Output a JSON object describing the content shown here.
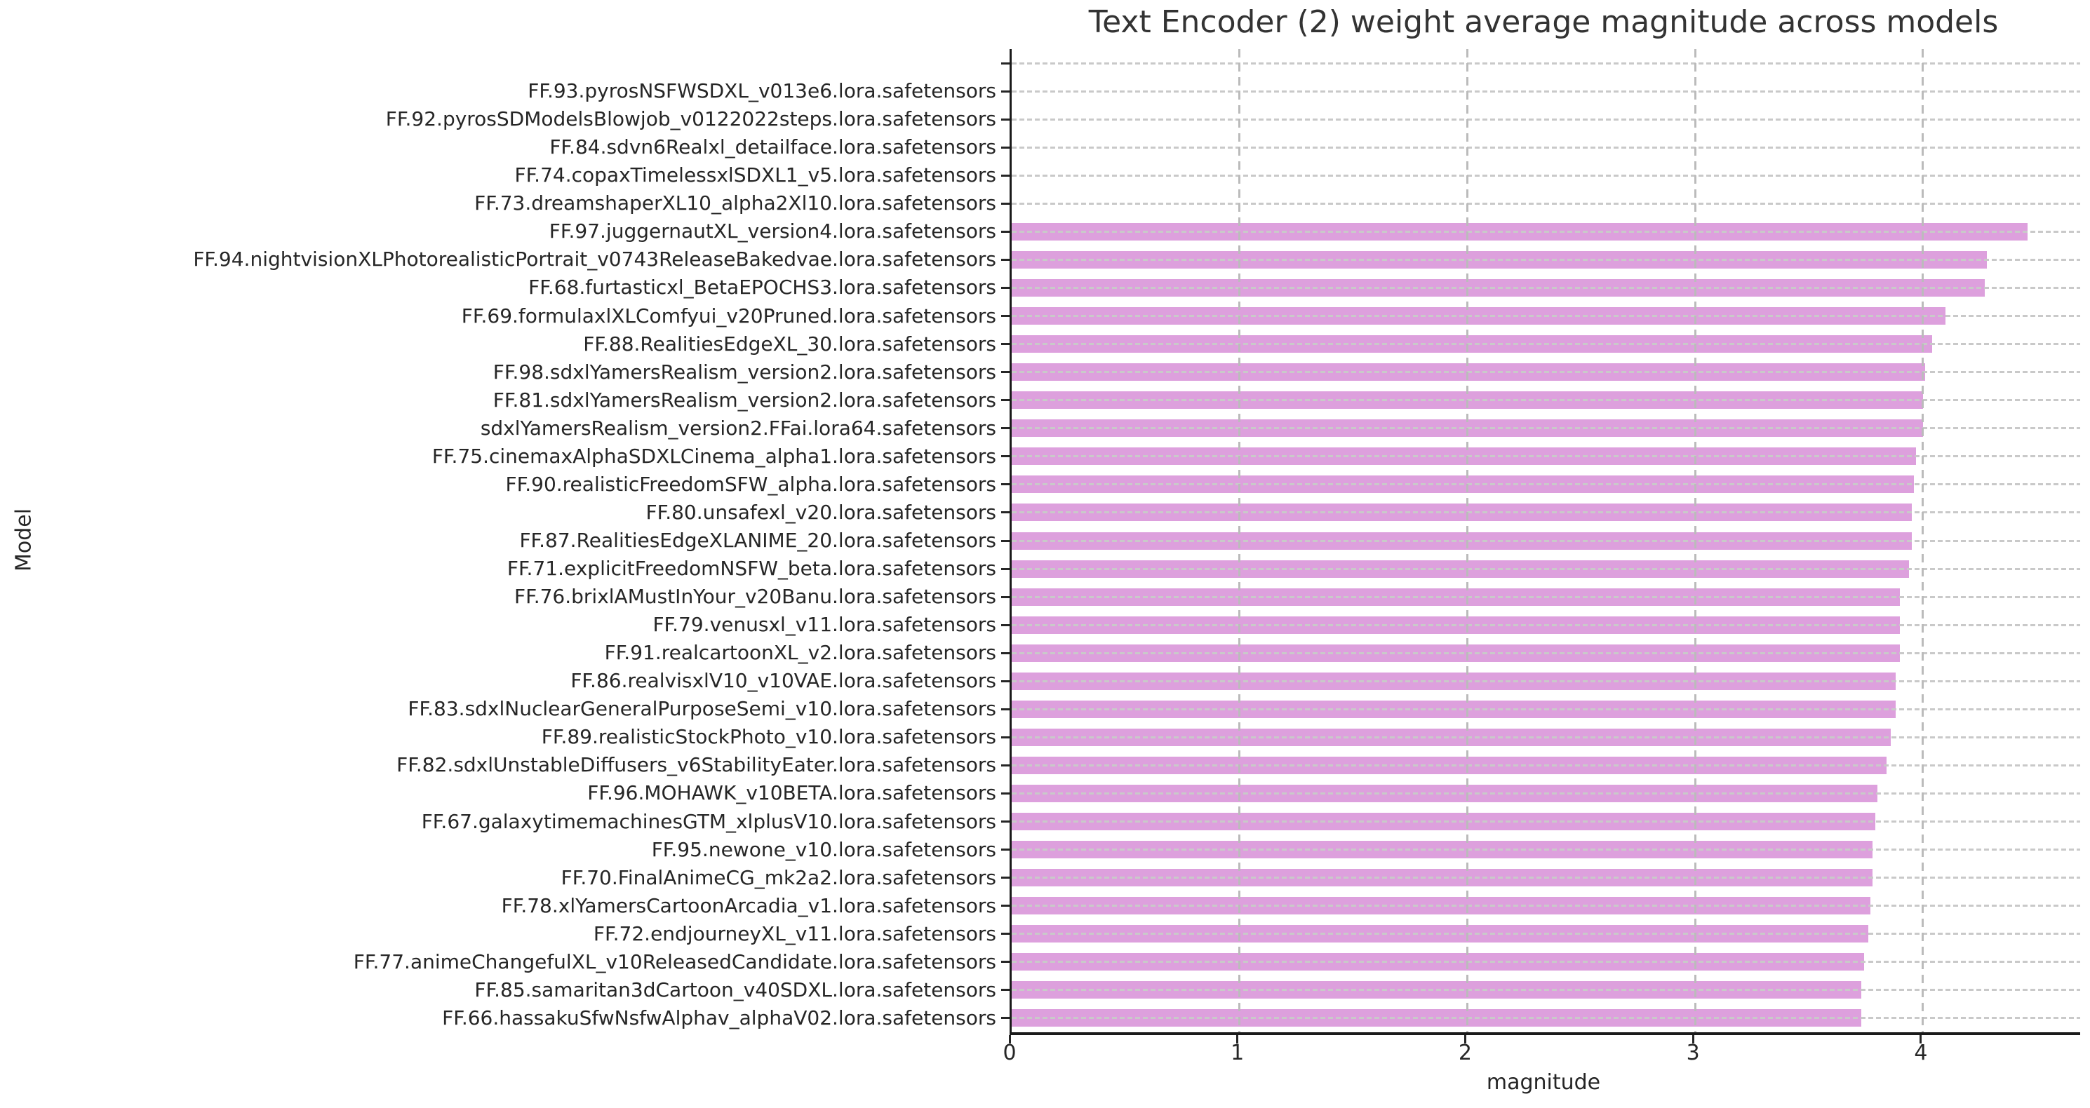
{
  "chart_data": {
    "type": "bar",
    "orientation": "horizontal",
    "title": "Text Encoder (2) weight average magnitude across models",
    "xlabel": "magnitude",
    "ylabel": "Model",
    "xlim": [
      0,
      4.69
    ],
    "x_ticks": [
      0,
      1,
      2,
      3,
      4
    ],
    "grid": true,
    "legend": "none",
    "bar_color": "#DDA0DD",
    "grid_color": "#c0c0c0",
    "text_color": "#262626",
    "categories": [
      "",
      "FF.93.pyrosNSFWSDXL_v013e6.lora.safetensors",
      "FF.92.pyrosSDModelsBlowjob_v0122022steps.lora.safetensors",
      "FF.84.sdvn6Realxl_detailface.lora.safetensors",
      "FF.74.copaxTimelessxlSDXL1_v5.lora.safetensors",
      "FF.73.dreamshaperXL10_alpha2Xl10.lora.safetensors",
      "FF.97.juggernautXL_version4.lora.safetensors",
      "FF.94.nightvisionXLPhotorealisticPortrait_v0743ReleaseBakedvae.lora.safetensors",
      "FF.68.furtasticxl_BetaEPOCHS3.lora.safetensors",
      "FF.69.formulaxlXLComfyui_v20Pruned.lora.safetensors",
      "FF.88.RealitiesEdgeXL_30.lora.safetensors",
      "FF.98.sdxlYamersRealism_version2.lora.safetensors",
      "FF.81.sdxlYamersRealism_version2.lora.safetensors",
      "sdxlYamersRealism_version2.FFai.lora64.safetensors",
      "FF.75.cinemaxAlphaSDXLCinema_alpha1.lora.safetensors",
      "FF.90.realisticFreedomSFW_alpha.lora.safetensors",
      "FF.80.unsafexl_v20.lora.safetensors",
      "FF.87.RealitiesEdgeXLANIME_20.lora.safetensors",
      "FF.71.explicitFreedomNSFW_beta.lora.safetensors",
      "FF.76.brixlAMustInYour_v20Banu.lora.safetensors",
      "FF.79.venusxl_v11.lora.safetensors",
      "FF.91.realcartoonXL_v2.lora.safetensors",
      "FF.86.realvisxlV10_v10VAE.lora.safetensors",
      "FF.83.sdxlNuclearGeneralPurposeSemi_v10.lora.safetensors",
      "FF.89.realisticStockPhoto_v10.lora.safetensors",
      "FF.82.sdxlUnstableDiffusers_v6StabilityEater.lora.safetensors",
      "FF.96.MOHAWK_v10BETA.lora.safetensors",
      "FF.67.galaxytimemachinesGTM_xlplusV10.lora.safetensors",
      "FF.95.newone_v10.lora.safetensors",
      "FF.70.FinalAnimeCG_mk2a2.lora.safetensors",
      "FF.78.xlYamersCartoonArcadia_v1.lora.safetensors",
      "FF.72.endjourneyXL_v11.lora.safetensors",
      "FF.77.animeChangefulXL_v10ReleasedCandidate.lora.safetensors",
      "FF.85.samaritan3dCartoon_v40SDXL.lora.safetensors",
      "FF.66.hassakuSfwNsfwAlphav_alphaV02.lora.safetensors"
    ],
    "values": [
      0,
      0,
      0,
      0,
      0,
      0,
      4.46,
      4.28,
      4.27,
      4.1,
      4.04,
      4.01,
      4.0,
      4.0,
      3.97,
      3.96,
      3.95,
      3.95,
      3.94,
      3.9,
      3.9,
      3.9,
      3.88,
      3.88,
      3.86,
      3.84,
      3.8,
      3.79,
      3.78,
      3.78,
      3.77,
      3.76,
      3.74,
      3.73,
      3.73
    ]
  }
}
